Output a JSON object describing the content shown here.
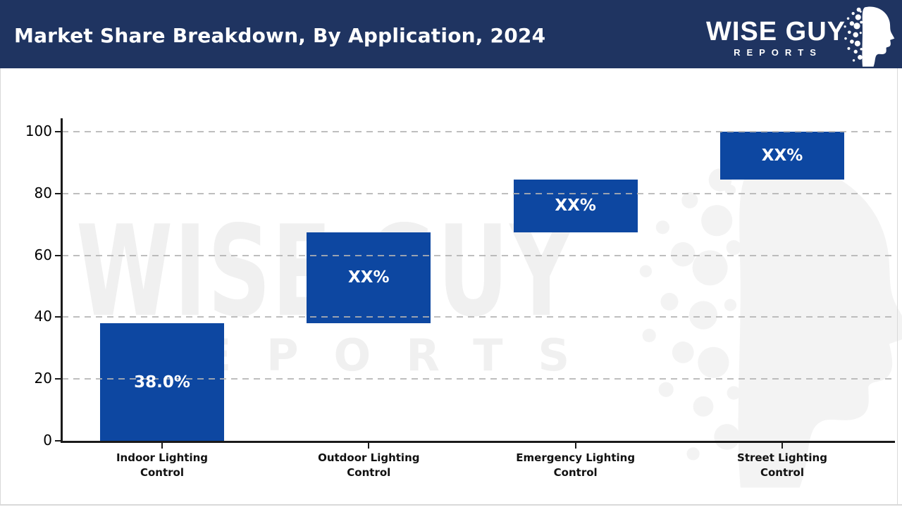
{
  "header": {
    "title": "Market Share Breakdown, By Application, 2024",
    "logo_line1": "WISE GUY",
    "logo_line2": "REPORTS",
    "bg_color": "#1f3461"
  },
  "watermark": {
    "line1": "WISE GUY",
    "line2": "REPORTS"
  },
  "chart_data": {
    "type": "bar",
    "subtype": "waterfall",
    "title": "Market Share Breakdown, By Application, 2024",
    "categories": [
      "Indoor Lighting Control",
      "Outdoor Lighting Control",
      "Emergency Lighting Control",
      "Street Lighting Control"
    ],
    "values": [
      38.0,
      29.5,
      17.0,
      15.5
    ],
    "bars": [
      {
        "label_lines": [
          "Indoor Lighting",
          "Control"
        ],
        "start": 0,
        "end": 38.0,
        "display_label": "38.0%"
      },
      {
        "label_lines": [
          "Outdoor Lighting",
          "Control"
        ],
        "start": 38.0,
        "end": 67.5,
        "display_label": "XX%"
      },
      {
        "label_lines": [
          "Emergency Lighting",
          "Control"
        ],
        "start": 67.5,
        "end": 84.5,
        "display_label": "XX%"
      },
      {
        "label_lines": [
          "Street Lighting",
          "Control"
        ],
        "start": 84.5,
        "end": 100.0,
        "display_label": "XX%"
      }
    ],
    "xlabel": "",
    "ylabel": "",
    "ylim": [
      0,
      105
    ],
    "yticks": [
      0,
      20,
      40,
      60,
      80,
      100
    ],
    "grid": "horizontal-dashed",
    "legend": "none",
    "bar_color": "#0d47a1",
    "bar_label_color": "#ffffff",
    "grid_color": "#c9c9c9",
    "axis_color": "#1a1a1a"
  }
}
